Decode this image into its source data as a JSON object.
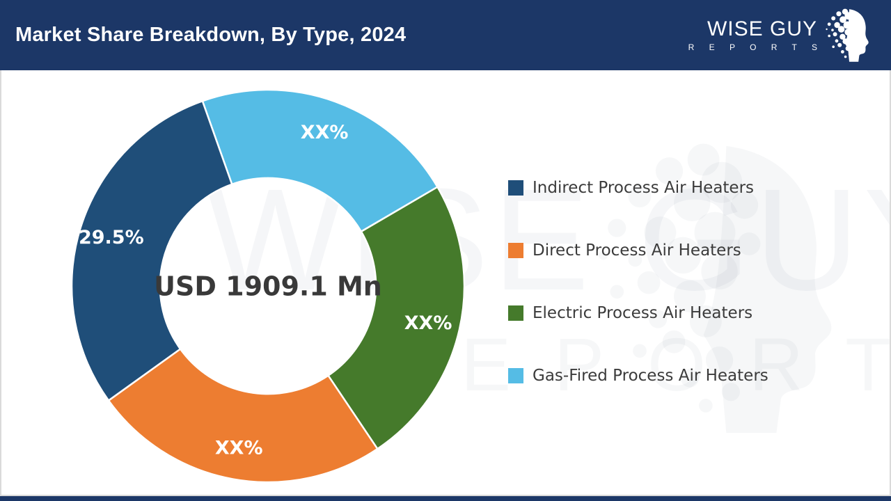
{
  "header": {
    "title": "Market Share Breakdown, By Type, 2024",
    "bg_color": "#1c3767",
    "logo": {
      "line1": "WISE GUY",
      "line2": "R E P O R T S"
    }
  },
  "chart_data": {
    "type": "pie",
    "subtype": "donut",
    "title": "Market Share Breakdown, By Type, 2024",
    "center_label": "USD 1909.1 Mn",
    "direction": "clockwise",
    "start_angle_deg_from_north": -19.5,
    "inner_radius_ratio": 0.55,
    "legend_position": "right",
    "segments": [
      {
        "name": "Gas-Fired Process Air Heaters",
        "value_pct": 22.0,
        "display_label": "XX%",
        "color": "#55bce5"
      },
      {
        "name": "Electric Process Air Heaters",
        "value_pct": 24.0,
        "display_label": "XX%",
        "color": "#457a2b"
      },
      {
        "name": "Direct Process Air Heaters",
        "value_pct": 24.5,
        "display_label": "XX%",
        "color": "#ed7d31"
      },
      {
        "name": "Indirect Process Air Heaters",
        "value_pct": 29.5,
        "display_label": "29.5%",
        "color": "#1f4e79"
      }
    ]
  },
  "legend": {
    "items": [
      {
        "label": "Indirect Process Air Heaters",
        "color": "#1f4e79"
      },
      {
        "label": "Direct Process Air Heaters",
        "color": "#ed7d31"
      },
      {
        "label": "Electric Process Air Heaters",
        "color": "#457a2b"
      },
      {
        "label": "Gas-Fired Process Air Heaters",
        "color": "#55bce5"
      }
    ]
  },
  "watermark": {
    "line1": "WISE GUY",
    "line2": "REPORTS"
  },
  "footer": {
    "bar_color": "#1c3767"
  }
}
